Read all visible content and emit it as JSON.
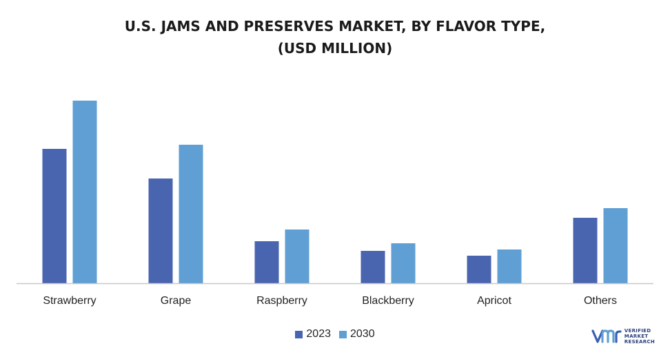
{
  "header": {
    "title_line1": "U.S. JAMS AND PRESERVES MARKET, BY FLAVOR TYPE,",
    "title_line2": "(USD MILLION)"
  },
  "logo": {
    "line1": "VERIFIED",
    "line2": "MARKET",
    "line3": "RESEARCH",
    "icon": "vmr-logo-icon"
  },
  "chart_data": {
    "type": "bar",
    "title": "U.S. JAMS AND PRESERVES MARKET, BY FLAVOR TYPE, (USD MILLION)",
    "categories": [
      "Strawberry",
      "Grape",
      "Raspberry",
      "Blackberry",
      "Apricot",
      "Others"
    ],
    "series": [
      {
        "name": "2023",
        "color": "#4a65b0",
        "values": [
          195,
          152,
          61,
          47,
          40,
          95
        ]
      },
      {
        "name": "2030",
        "color": "#5f9fd4",
        "values": [
          265,
          201,
          78,
          58,
          49,
          109
        ]
      }
    ],
    "xlabel": "",
    "ylabel": "",
    "ylim": [
      0,
      265
    ],
    "grid": false,
    "legend": "bottom-center"
  }
}
